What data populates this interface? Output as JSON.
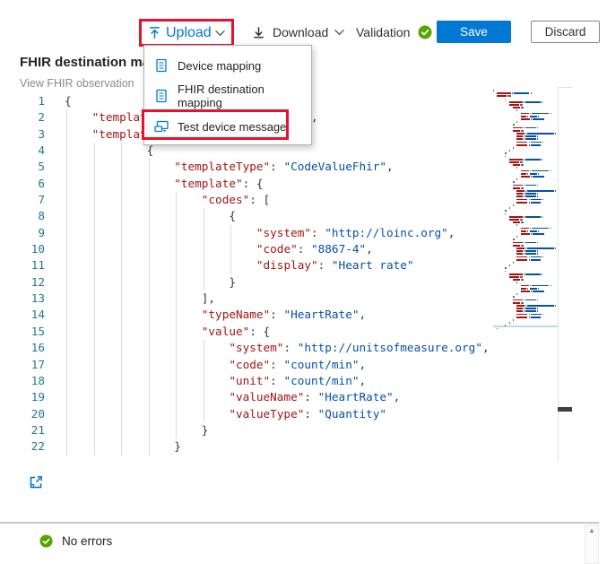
{
  "toolbar": {
    "upload_label": "Upload",
    "download_label": "Download",
    "validation_label": "Validation",
    "save_label": "Save",
    "discard_label": "Discard"
  },
  "menu": {
    "items": [
      {
        "label": "Device mapping",
        "icon": "document-icon"
      },
      {
        "label": "FHIR destination mapping",
        "icon": "document-icon"
      },
      {
        "label": "Test device message",
        "icon": "device-message-icon"
      }
    ]
  },
  "header": {
    "title": "FHIR destination mapping",
    "subtitle": "View FHIR observation"
  },
  "editor": {
    "lines": [
      "{",
      "    \"templateType\": \"CollectionFhir\",",
      "    \"template\": [",
      "            {",
      "                \"templateType\": \"CodeValueFhir\",",
      "                \"template\": {",
      "                    \"codes\": [",
      "                        {",
      "                            \"system\": \"http://loinc.org\",",
      "                            \"code\": \"8867-4\",",
      "                            \"display\": \"Heart rate\"",
      "                        }",
      "                    ],",
      "                    \"typeName\": \"HeartRate\",",
      "                    \"value\": {",
      "                        \"system\": \"http://unitsofmeasure.org\",",
      "                        \"code\": \"count/min\",",
      "                        \"unit\": \"count/min\",",
      "                        \"valueName\": \"HeartRate\",",
      "                        \"valueType\": \"Quantity\"",
      "                    }",
      "                }"
    ]
  },
  "status": {
    "message": "No errors"
  },
  "colors": {
    "accent": "#0078d4",
    "json_key": "#a31515",
    "json_string": "#0451a5",
    "line_number": "#237893",
    "highlight_red": "#e8112d",
    "success_green": "#57a300"
  }
}
